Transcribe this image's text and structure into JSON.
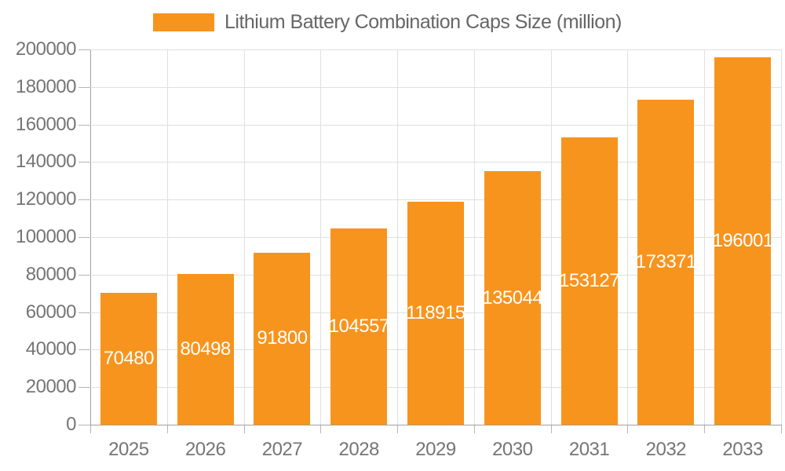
{
  "chart_data": {
    "type": "bar",
    "legend": "Lithium Battery Combination Caps Size (million)",
    "categories": [
      "2025",
      "2026",
      "2027",
      "2028",
      "2029",
      "2030",
      "2031",
      "2032",
      "2033"
    ],
    "values": [
      70480,
      80498,
      91800,
      104557,
      118915,
      135044,
      153127,
      173371,
      196001
    ],
    "ylim": [
      0,
      200000
    ],
    "ytick_step": 20000,
    "ytick_labels": [
      "0",
      "20000",
      "40000",
      "60000",
      "80000",
      "100000",
      "120000",
      "140000",
      "160000",
      "180000",
      "200000"
    ],
    "grid": true,
    "legend_position": "top-center",
    "value_labels_shown": true,
    "colors": {
      "bar": "#F7941E",
      "grid": "#E0E0E0",
      "axis_line": "#A0A0A0",
      "tick": "#B5B5B5",
      "axis_label_text": "#757575",
      "legend_text": "#666666",
      "value_label_text": "#FFFFFF",
      "background": "#FFFFFF"
    }
  }
}
